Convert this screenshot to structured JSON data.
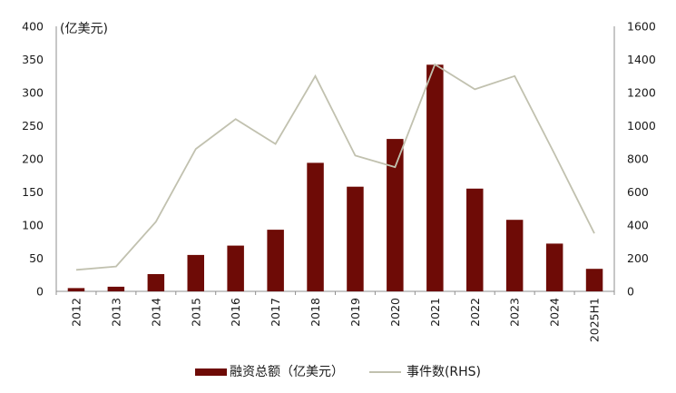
{
  "unit_label": "(亿美元)",
  "legend": {
    "bar_label": "融资总额（亿美元）",
    "line_label": "事件数(RHS)"
  },
  "chart_data": {
    "type": "bar",
    "subtype": "bar-with-line-dual-axis",
    "title": "",
    "categories": [
      "2012",
      "2013",
      "2014",
      "2015",
      "2016",
      "2017",
      "2018",
      "2019",
      "2020",
      "2021",
      "2022",
      "2023",
      "2024",
      "2025H1"
    ],
    "series": [
      {
        "name": "融资总额（亿美元）",
        "type": "bar",
        "axis": "left",
        "color": "#6E0B06",
        "values": [
          5,
          7,
          26,
          55,
          69,
          93,
          194,
          158,
          230,
          342,
          155,
          108,
          72,
          34
        ]
      },
      {
        "name": "事件数(RHS)",
        "type": "line",
        "axis": "right",
        "color": "#C1C1AF",
        "values": [
          130,
          150,
          420,
          860,
          1040,
          890,
          1300,
          820,
          750,
          1370,
          1220,
          1300,
          830,
          350
        ]
      }
    ],
    "left_axis": {
      "unit": "(亿美元)",
      "min": 0,
      "max": 400,
      "step": 50
    },
    "right_axis": {
      "min": 0,
      "max": 1600,
      "step": 200
    },
    "grid": false,
    "legend_position": "bottom",
    "x_tick_rotation": -90
  }
}
